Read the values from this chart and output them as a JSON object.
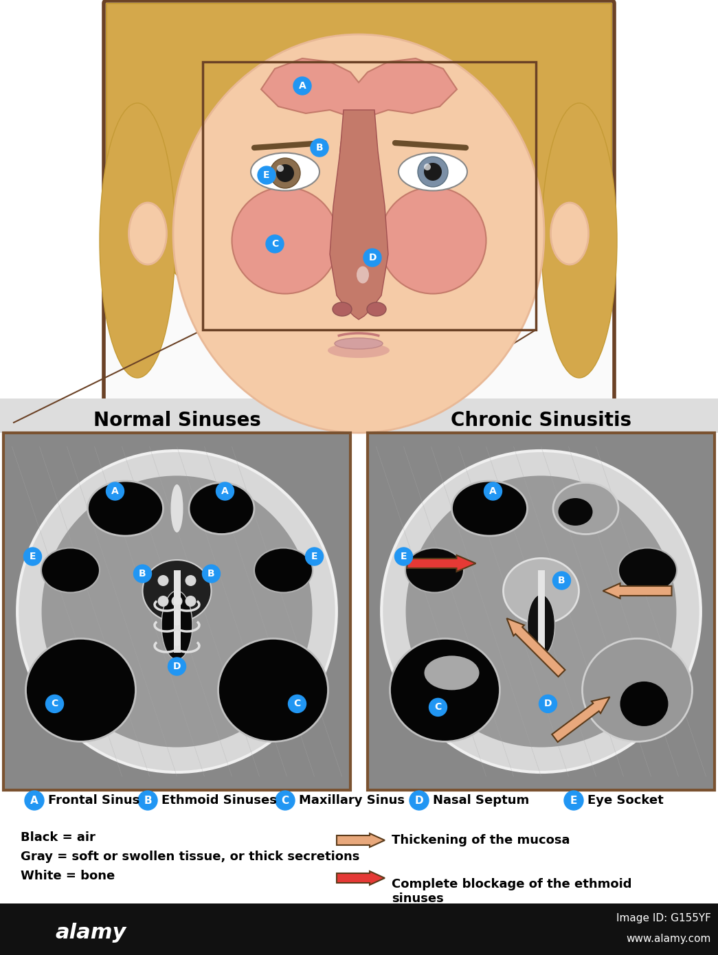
{
  "bg_color": "#ffffff",
  "title_normal": "Normal Sinuses",
  "title_chronic": "Chronic Sinusitis",
  "labels": [
    {
      "letter": "A",
      "name": "Frontal Sinus",
      "color": "#2196F3"
    },
    {
      "letter": "B",
      "name": "Ethmoid Sinuses",
      "color": "#2196F3"
    },
    {
      "letter": "C",
      "name": "Maxillary Sinus",
      "color": "#2196F3"
    },
    {
      "letter": "D",
      "name": "Nasal Septum",
      "color": "#2196F3"
    },
    {
      "letter": "E",
      "name": "Eye Socket",
      "color": "#2196F3"
    }
  ],
  "legend_left": [
    "Black = air",
    "Gray = soft or swollen tissue, or thick secretions",
    "White = bone"
  ],
  "arrow_orange_text": "Thickening of the mucosa",
  "arrow_red_text": "Complete blockage of the ethmoid\nsinuses",
  "border_color": "#6B4226",
  "bottom_bar_color": "#111111",
  "face_skin": "#F5CBA7",
  "face_skin_dark": "#E8B896",
  "hair_color": "#D4A84B",
  "hair_dark": "#C49A35",
  "sinus_pink": "#E8998D",
  "sinus_dark": "#C47A6A",
  "ct_gray_bg": "#909090",
  "ct_bone_white": "#E0E0E0",
  "ct_air_black": "#080808",
  "ct_tissue_gray": "#808080",
  "orange_arrow": "#E8A87C",
  "red_arrow": "#E53935",
  "label_blue": "#2196F3",
  "label_orange": "#FF9800"
}
